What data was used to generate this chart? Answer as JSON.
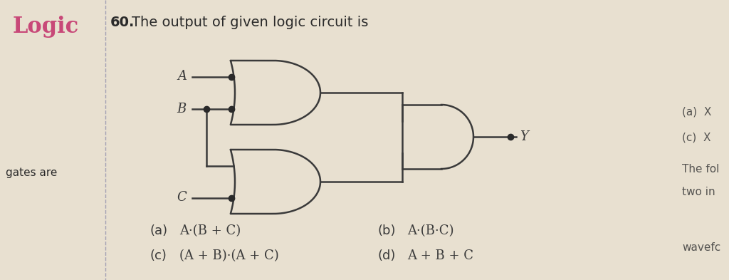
{
  "title_logic": "Logic",
  "title_number": "60.",
  "title_text": "The output of given logic circuit is",
  "background_color": "#e8e0d0",
  "options": [
    {
      "label": "(a)",
      "text": "A·(B + C)"
    },
    {
      "label": "(b)",
      "text": "A·(B·C)"
    },
    {
      "label": "(c)",
      "text": "(A + B)·(A + C)"
    },
    {
      "label": "(d)",
      "text": "A + B + C"
    }
  ],
  "left_text": "gates are",
  "line_color": "#3a3a3a",
  "dot_color": "#2a2a2a",
  "label_color": "#2a2a2a",
  "logic_color": "#c84878",
  "separator_color": "#8888aa",
  "right_text_a": "(a)  X",
  "right_text_c": "(c)  X",
  "right_text_fol": "The fol",
  "right_text_two": "two in",
  "right_text_wav": "wavefc"
}
